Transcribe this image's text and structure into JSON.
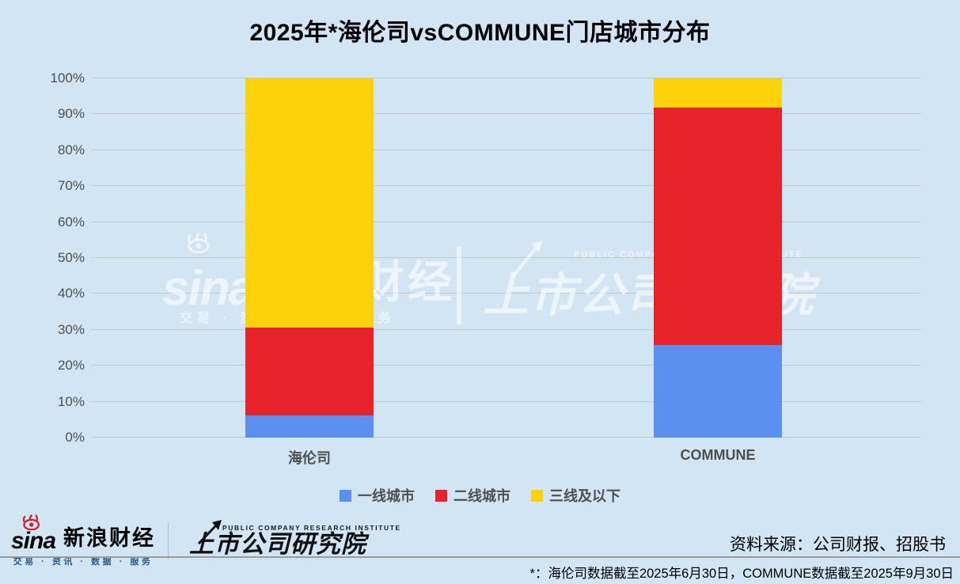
{
  "title": "2025年*海伦司vsCOMMUNE门店城市分布",
  "chart_data": {
    "type": "bar",
    "stacked": true,
    "categories": [
      "海伦司",
      "COMMUNE"
    ],
    "series": [
      {
        "name": "一线城市",
        "color": "#5b8ff0",
        "values": [
          6.2,
          25.7
        ]
      },
      {
        "name": "二线城市",
        "color": "#e62329",
        "values": [
          24.4,
          66.2
        ]
      },
      {
        "name": "三线及以下",
        "color": "#fdd20a",
        "values": [
          69.4,
          8.1
        ]
      }
    ],
    "ylim": [
      0,
      100
    ],
    "y_ticks": [
      "0%",
      "10%",
      "20%",
      "30%",
      "40%",
      "50%",
      "60%",
      "70%",
      "80%",
      "90%",
      "100%"
    ],
    "grid": true,
    "legend_position": "bottom"
  },
  "watermark": {
    "brand": "sina",
    "brand_cn": "新浪财经",
    "tagline": "交易 · 资讯 · 数据 · 服务",
    "right_name": "上市公司研究院",
    "right_sub": "PUBLIC COMPANY RESEARCH INSTITUTE"
  },
  "footer": {
    "sina": {
      "brand": "sina",
      "name": "新浪财经",
      "tagline": "交易 · 资讯 · 数据 · 服务"
    },
    "pcri": {
      "name": "上市公司研究院",
      "sub": "PUBLIC COMPANY RESEARCH INSTITUTE"
    },
    "source": "资料来源：公司财报、招股书",
    "footnote": "*：海伦司数据截至2025年6月30日，COMMUNE数据截至2025年9月30日"
  },
  "colors": {
    "background": "#d2e5f4",
    "first_tier": "#5b8ff0",
    "second_tier": "#e62329",
    "third_tier": "#fdd20a",
    "gridline": "#c4bdb1",
    "axis_text": "#4f4f4f"
  }
}
